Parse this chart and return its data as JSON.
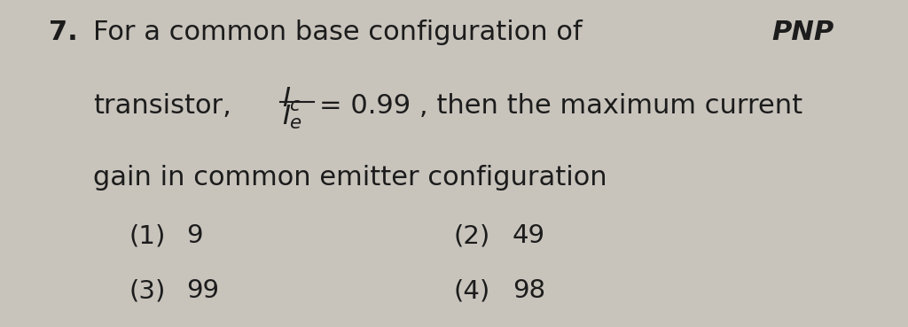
{
  "background_color": "#c8c4bc",
  "text_color": "#1c1c1c",
  "question_number": "7.",
  "line1_text": "For a common base configuration of ",
  "line1_italic": "PNP",
  "line2_prefix": "transistor,",
  "fraction_num": "$I_c$",
  "fraction_den": "$I_e$",
  "line2_suffix": "= 0.99 , then the maximum current",
  "line3": "gain in common emitter configuration",
  "opt1_label": "(1)",
  "opt1_val": "9",
  "opt2_label": "(2)",
  "opt2_val": "49",
  "opt3_label": "(3)",
  "opt3_val": "99",
  "opt4_label": "(4)",
  "opt4_val": "98",
  "font_size_main": 22,
  "font_size_options": 21
}
